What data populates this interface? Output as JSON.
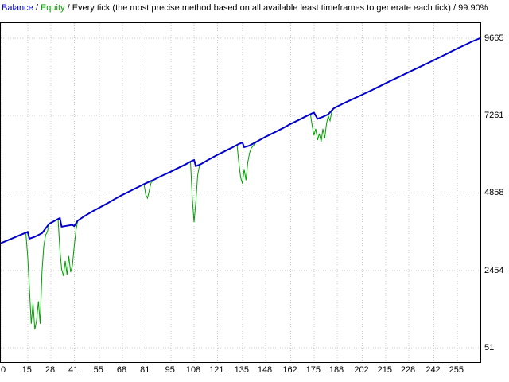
{
  "legend": {
    "balance": "Balance",
    "equity": "Equity",
    "separator": " / ",
    "method": "Every tick (the most precise method based on all available least timeframes to generate each tick)",
    "quality": "99.90%"
  },
  "chart_data": {
    "type": "line",
    "title": "Balance / Equity / Every tick (the most precise method based on all available least timeframes to generate each tick) / 99.90%",
    "xlabel": "",
    "ylabel": "",
    "grid": "dotted",
    "grid_color": "#c8c8c8",
    "legend_position": "top-left",
    "x_range": [
      0,
      268
    ],
    "y_range": [
      -390,
      10130
    ],
    "x_ticks": [
      0,
      15,
      28,
      41,
      55,
      68,
      81,
      95,
      108,
      121,
      135,
      148,
      162,
      175,
      188,
      202,
      215,
      228,
      242,
      255
    ],
    "y_ticks": [
      51,
      2454,
      4858,
      7261,
      9665
    ],
    "series": [
      {
        "name": "Balance",
        "color": "#0000C8",
        "width": 2,
        "points": [
          [
            0,
            3300
          ],
          [
            6,
            3440
          ],
          [
            12,
            3580
          ],
          [
            15,
            3650
          ],
          [
            16,
            3440
          ],
          [
            19,
            3500
          ],
          [
            23,
            3610
          ],
          [
            27,
            3900
          ],
          [
            30,
            3990
          ],
          [
            33,
            4080
          ],
          [
            34,
            3810
          ],
          [
            37,
            3840
          ],
          [
            40,
            3870
          ],
          [
            41,
            3830
          ],
          [
            43,
            4000
          ],
          [
            47,
            4150
          ],
          [
            51,
            4280
          ],
          [
            55,
            4400
          ],
          [
            60,
            4550
          ],
          [
            64,
            4680
          ],
          [
            68,
            4800
          ],
          [
            72,
            4910
          ],
          [
            76,
            5020
          ],
          [
            81,
            5160
          ],
          [
            86,
            5280
          ],
          [
            90,
            5390
          ],
          [
            95,
            5520
          ],
          [
            99,
            5630
          ],
          [
            103,
            5740
          ],
          [
            107,
            5860
          ],
          [
            108,
            5880
          ],
          [
            109,
            5690
          ],
          [
            112,
            5760
          ],
          [
            116,
            5890
          ],
          [
            121,
            6040
          ],
          [
            125,
            6150
          ],
          [
            129,
            6260
          ],
          [
            133,
            6380
          ],
          [
            135,
            6420
          ],
          [
            136,
            6280
          ],
          [
            139,
            6330
          ],
          [
            143,
            6450
          ],
          [
            148,
            6600
          ],
          [
            153,
            6740
          ],
          [
            158,
            6880
          ],
          [
            162,
            7000
          ],
          [
            166,
            7110
          ],
          [
            170,
            7220
          ],
          [
            174,
            7330
          ],
          [
            175,
            7350
          ],
          [
            177,
            7160
          ],
          [
            180,
            7220
          ],
          [
            183,
            7300
          ],
          [
            186,
            7480
          ],
          [
            188,
            7540
          ],
          [
            192,
            7650
          ],
          [
            197,
            7780
          ],
          [
            202,
            7910
          ],
          [
            207,
            8040
          ],
          [
            211,
            8150
          ],
          [
            215,
            8260
          ],
          [
            219,
            8370
          ],
          [
            224,
            8500
          ],
          [
            228,
            8610
          ],
          [
            233,
            8740
          ],
          [
            238,
            8870
          ],
          [
            242,
            8980
          ],
          [
            246,
            9090
          ],
          [
            250,
            9200
          ],
          [
            255,
            9340
          ],
          [
            259,
            9440
          ],
          [
            263,
            9550
          ],
          [
            268,
            9665
          ]
        ]
      },
      {
        "name": "Equity",
        "color": "#00A000",
        "width": 1,
        "points": [
          [
            0,
            3300
          ],
          [
            6,
            3440
          ],
          [
            12,
            3580
          ],
          [
            14,
            3620
          ],
          [
            15,
            2900
          ],
          [
            16,
            1900
          ],
          [
            17,
            800
          ],
          [
            18,
            1450
          ],
          [
            19,
            620
          ],
          [
            20,
            900
          ],
          [
            21,
            1500
          ],
          [
            22,
            800
          ],
          [
            23,
            2400
          ],
          [
            24,
            3200
          ],
          [
            25,
            3550
          ],
          [
            26,
            3650
          ],
          [
            27,
            3900
          ],
          [
            30,
            3990
          ],
          [
            32,
            4060
          ],
          [
            33,
            3100
          ],
          [
            34,
            2500
          ],
          [
            35,
            2280
          ],
          [
            36,
            2750
          ],
          [
            37,
            2320
          ],
          [
            38,
            2900
          ],
          [
            39,
            2400
          ],
          [
            40,
            2600
          ],
          [
            41,
            3200
          ],
          [
            42,
            3700
          ],
          [
            43,
            4000
          ],
          [
            47,
            4150
          ],
          [
            51,
            4280
          ],
          [
            55,
            4400
          ],
          [
            60,
            4550
          ],
          [
            64,
            4680
          ],
          [
            68,
            4800
          ],
          [
            72,
            4910
          ],
          [
            76,
            5020
          ],
          [
            80,
            5140
          ],
          [
            81,
            4800
          ],
          [
            82,
            4700
          ],
          [
            83,
            4950
          ],
          [
            84,
            5180
          ],
          [
            86,
            5280
          ],
          [
            90,
            5390
          ],
          [
            95,
            5520
          ],
          [
            99,
            5630
          ],
          [
            103,
            5740
          ],
          [
            106,
            5830
          ],
          [
            107,
            4700
          ],
          [
            108,
            3950
          ],
          [
            109,
            4600
          ],
          [
            110,
            5400
          ],
          [
            111,
            5700
          ],
          [
            112,
            5760
          ],
          [
            116,
            5890
          ],
          [
            121,
            6040
          ],
          [
            125,
            6150
          ],
          [
            129,
            6260
          ],
          [
            132,
            6360
          ],
          [
            133,
            5800
          ],
          [
            134,
            5350
          ],
          [
            135,
            5150
          ],
          [
            136,
            5600
          ],
          [
            137,
            5250
          ],
          [
            138,
            5800
          ],
          [
            139,
            6100
          ],
          [
            140,
            6250
          ],
          [
            143,
            6450
          ],
          [
            148,
            6600
          ],
          [
            153,
            6740
          ],
          [
            158,
            6880
          ],
          [
            162,
            7000
          ],
          [
            166,
            7110
          ],
          [
            170,
            7220
          ],
          [
            173,
            7310
          ],
          [
            174,
            6950
          ],
          [
            175,
            6650
          ],
          [
            176,
            6850
          ],
          [
            177,
            6500
          ],
          [
            178,
            6700
          ],
          [
            179,
            6450
          ],
          [
            180,
            6850
          ],
          [
            181,
            6550
          ],
          [
            182,
            7000
          ],
          [
            183,
            7250
          ],
          [
            184,
            7100
          ],
          [
            185,
            7400
          ],
          [
            186,
            7480
          ],
          [
            188,
            7540
          ],
          [
            192,
            7650
          ],
          [
            197,
            7780
          ],
          [
            202,
            7910
          ],
          [
            207,
            8040
          ],
          [
            211,
            8150
          ],
          [
            215,
            8260
          ],
          [
            219,
            8370
          ],
          [
            224,
            8500
          ],
          [
            228,
            8610
          ],
          [
            233,
            8740
          ],
          [
            238,
            8870
          ],
          [
            242,
            8980
          ],
          [
            246,
            9090
          ],
          [
            250,
            9200
          ],
          [
            255,
            9340
          ],
          [
            259,
            9440
          ],
          [
            263,
            9550
          ],
          [
            268,
            9665
          ]
        ]
      }
    ]
  }
}
